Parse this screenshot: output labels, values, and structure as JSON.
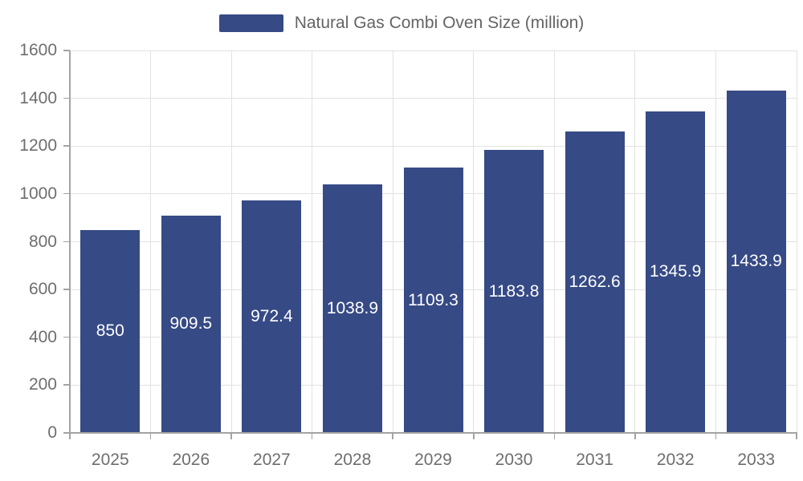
{
  "legend": {
    "label": "Natural Gas Combi Oven Size (million)"
  },
  "colors": {
    "bar": "#364a85",
    "axis_line": "#a3a3a3",
    "grid_line": "#e2e2e2",
    "tick_label": "#6e6e6e",
    "value_label": "#ffffff",
    "legend_text": "#646464"
  },
  "chart_data": {
    "type": "bar",
    "title": "Natural Gas Combi Oven Size (million)",
    "categories": [
      "2025",
      "2026",
      "2027",
      "2028",
      "2029",
      "2030",
      "2031",
      "2032",
      "2033"
    ],
    "values": [
      850,
      909.5,
      972.4,
      1038.9,
      1109.3,
      1183.8,
      1262.6,
      1345.9,
      1433.9
    ],
    "value_labels": [
      "850",
      "909.5",
      "972.4",
      "1038.9",
      "1109.3",
      "1183.8",
      "1262.6",
      "1345.9",
      "1433.9"
    ],
    "xlabel": "",
    "ylabel": "",
    "ylim": [
      0,
      1600
    ],
    "ytick_interval": 200,
    "ytick_labels": [
      "0",
      "200",
      "400",
      "600",
      "800",
      "1000",
      "1200",
      "1400",
      "1600"
    ],
    "grid": true,
    "legend_position": "top-center",
    "bar_label_position": "inside-middle"
  }
}
